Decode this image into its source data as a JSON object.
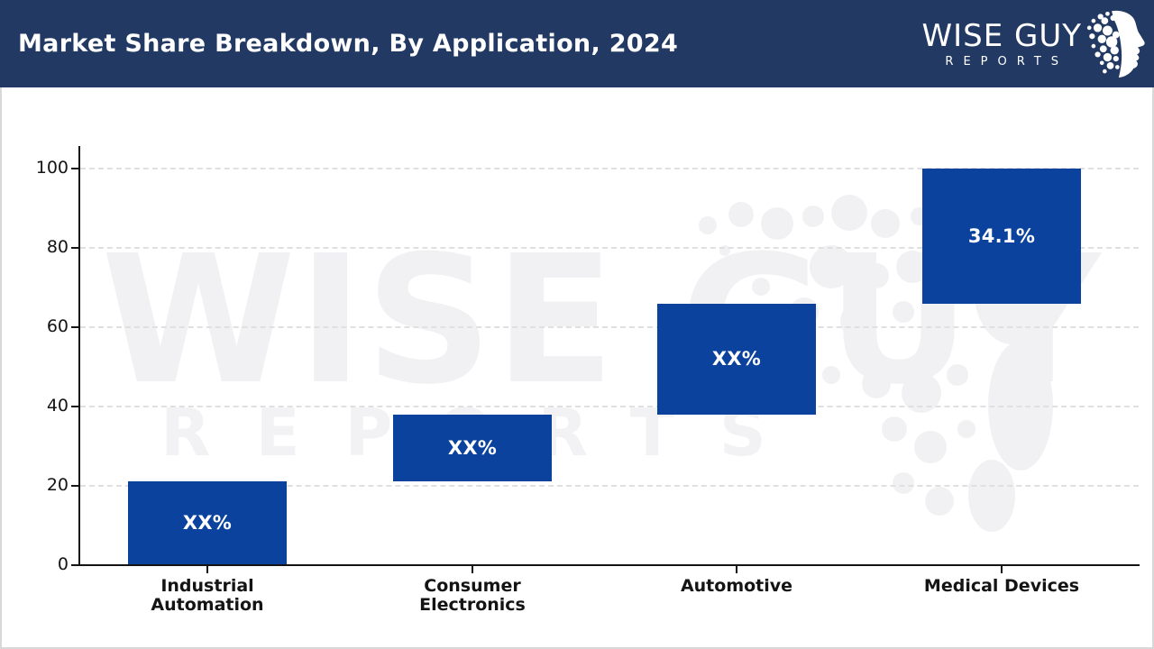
{
  "header": {
    "title": "Market Share Breakdown, By Application, 2024",
    "logo_line1": "WISE GUY",
    "logo_line2": "REPORTS"
  },
  "watermark": {
    "line1": "WISE GUY",
    "line2": "REPORTS"
  },
  "chart_data": {
    "type": "bar",
    "subtype": "floating-waterfall-segments",
    "title": "Market Share Breakdown, By Application, 2024",
    "xlabel": "",
    "ylabel": "",
    "ylim": [
      0,
      106
    ],
    "yticks": [
      0,
      20,
      40,
      60,
      80,
      100
    ],
    "grid": "horizontal-dashed",
    "legend": "none",
    "bar_color": "#0a429d",
    "bar_label_color": "#ffffff",
    "categories": [
      "Industrial Automation",
      "Consumer Electronics",
      "Automotive",
      "Medical Devices"
    ],
    "category_label_lines": [
      [
        "Industrial",
        "Automation"
      ],
      [
        "Consumer",
        "Electronics"
      ],
      [
        "Automotive"
      ],
      [
        "Medical Devices"
      ]
    ],
    "segments": [
      {
        "category": "Industrial Automation",
        "start": 0,
        "end": 21.2,
        "size": 21.2,
        "value_label": "XX%"
      },
      {
        "category": "Consumer Electronics",
        "start": 21.2,
        "end": 38.0,
        "size": 16.8,
        "value_label": "XX%"
      },
      {
        "category": "Automotive",
        "start": 38.0,
        "end": 65.9,
        "size": 27.9,
        "value_label": "XX%"
      },
      {
        "category": "Medical Devices",
        "start": 65.9,
        "end": 100.0,
        "size": 34.1,
        "value_label": "34.1%"
      }
    ]
  },
  "colors": {
    "header_bg": "#223a63",
    "bar": "#0a429d",
    "grid": "#e0e0e0",
    "axis": "#141414",
    "watermark": "#f1f1f4",
    "card_border": "#d8d8d8",
    "title_text": "#ffffff",
    "bar_label_text": "#ffffff"
  }
}
